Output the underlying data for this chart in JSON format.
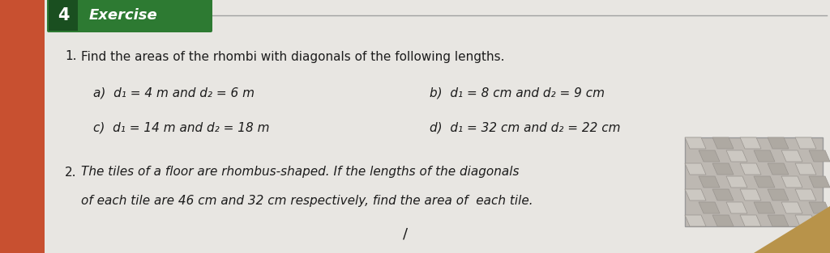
{
  "background_color": "#c8c0b8",
  "page_bg": "#e8e6e2",
  "header_bg": "#2d7a32",
  "header_number": "4",
  "header_text": "Exercise",
  "q1_label": "1.",
  "q1_text": "Find the areas of the rhombi with diagonals of the following lengths.",
  "q1_a": "a)  d₁ = 4 m and d₂ = 6 m",
  "q1_b": "b)  d₁ = 8 cm and d₂ = 9 cm",
  "q1_c": "c)  d₁ = 14 m and d₂ = 18 m",
  "q1_d": "d)  d₁ = 32 cm and d₂ = 22 cm",
  "q2_label": "2.",
  "q2_line1": "The tiles of a floor are rhombus-shaped. If the lengths of the diagonals",
  "q2_line2": "of each tile are 46 cm and 32 cm respectively, find the area of  each tile.",
  "slash": "/",
  "text_color": "#1c1c1c",
  "header_num_bg": "#1a4f20",
  "line_color": "#a0a0a0",
  "tile_bg": "#c8c2bc",
  "tile_line": "#a09890"
}
